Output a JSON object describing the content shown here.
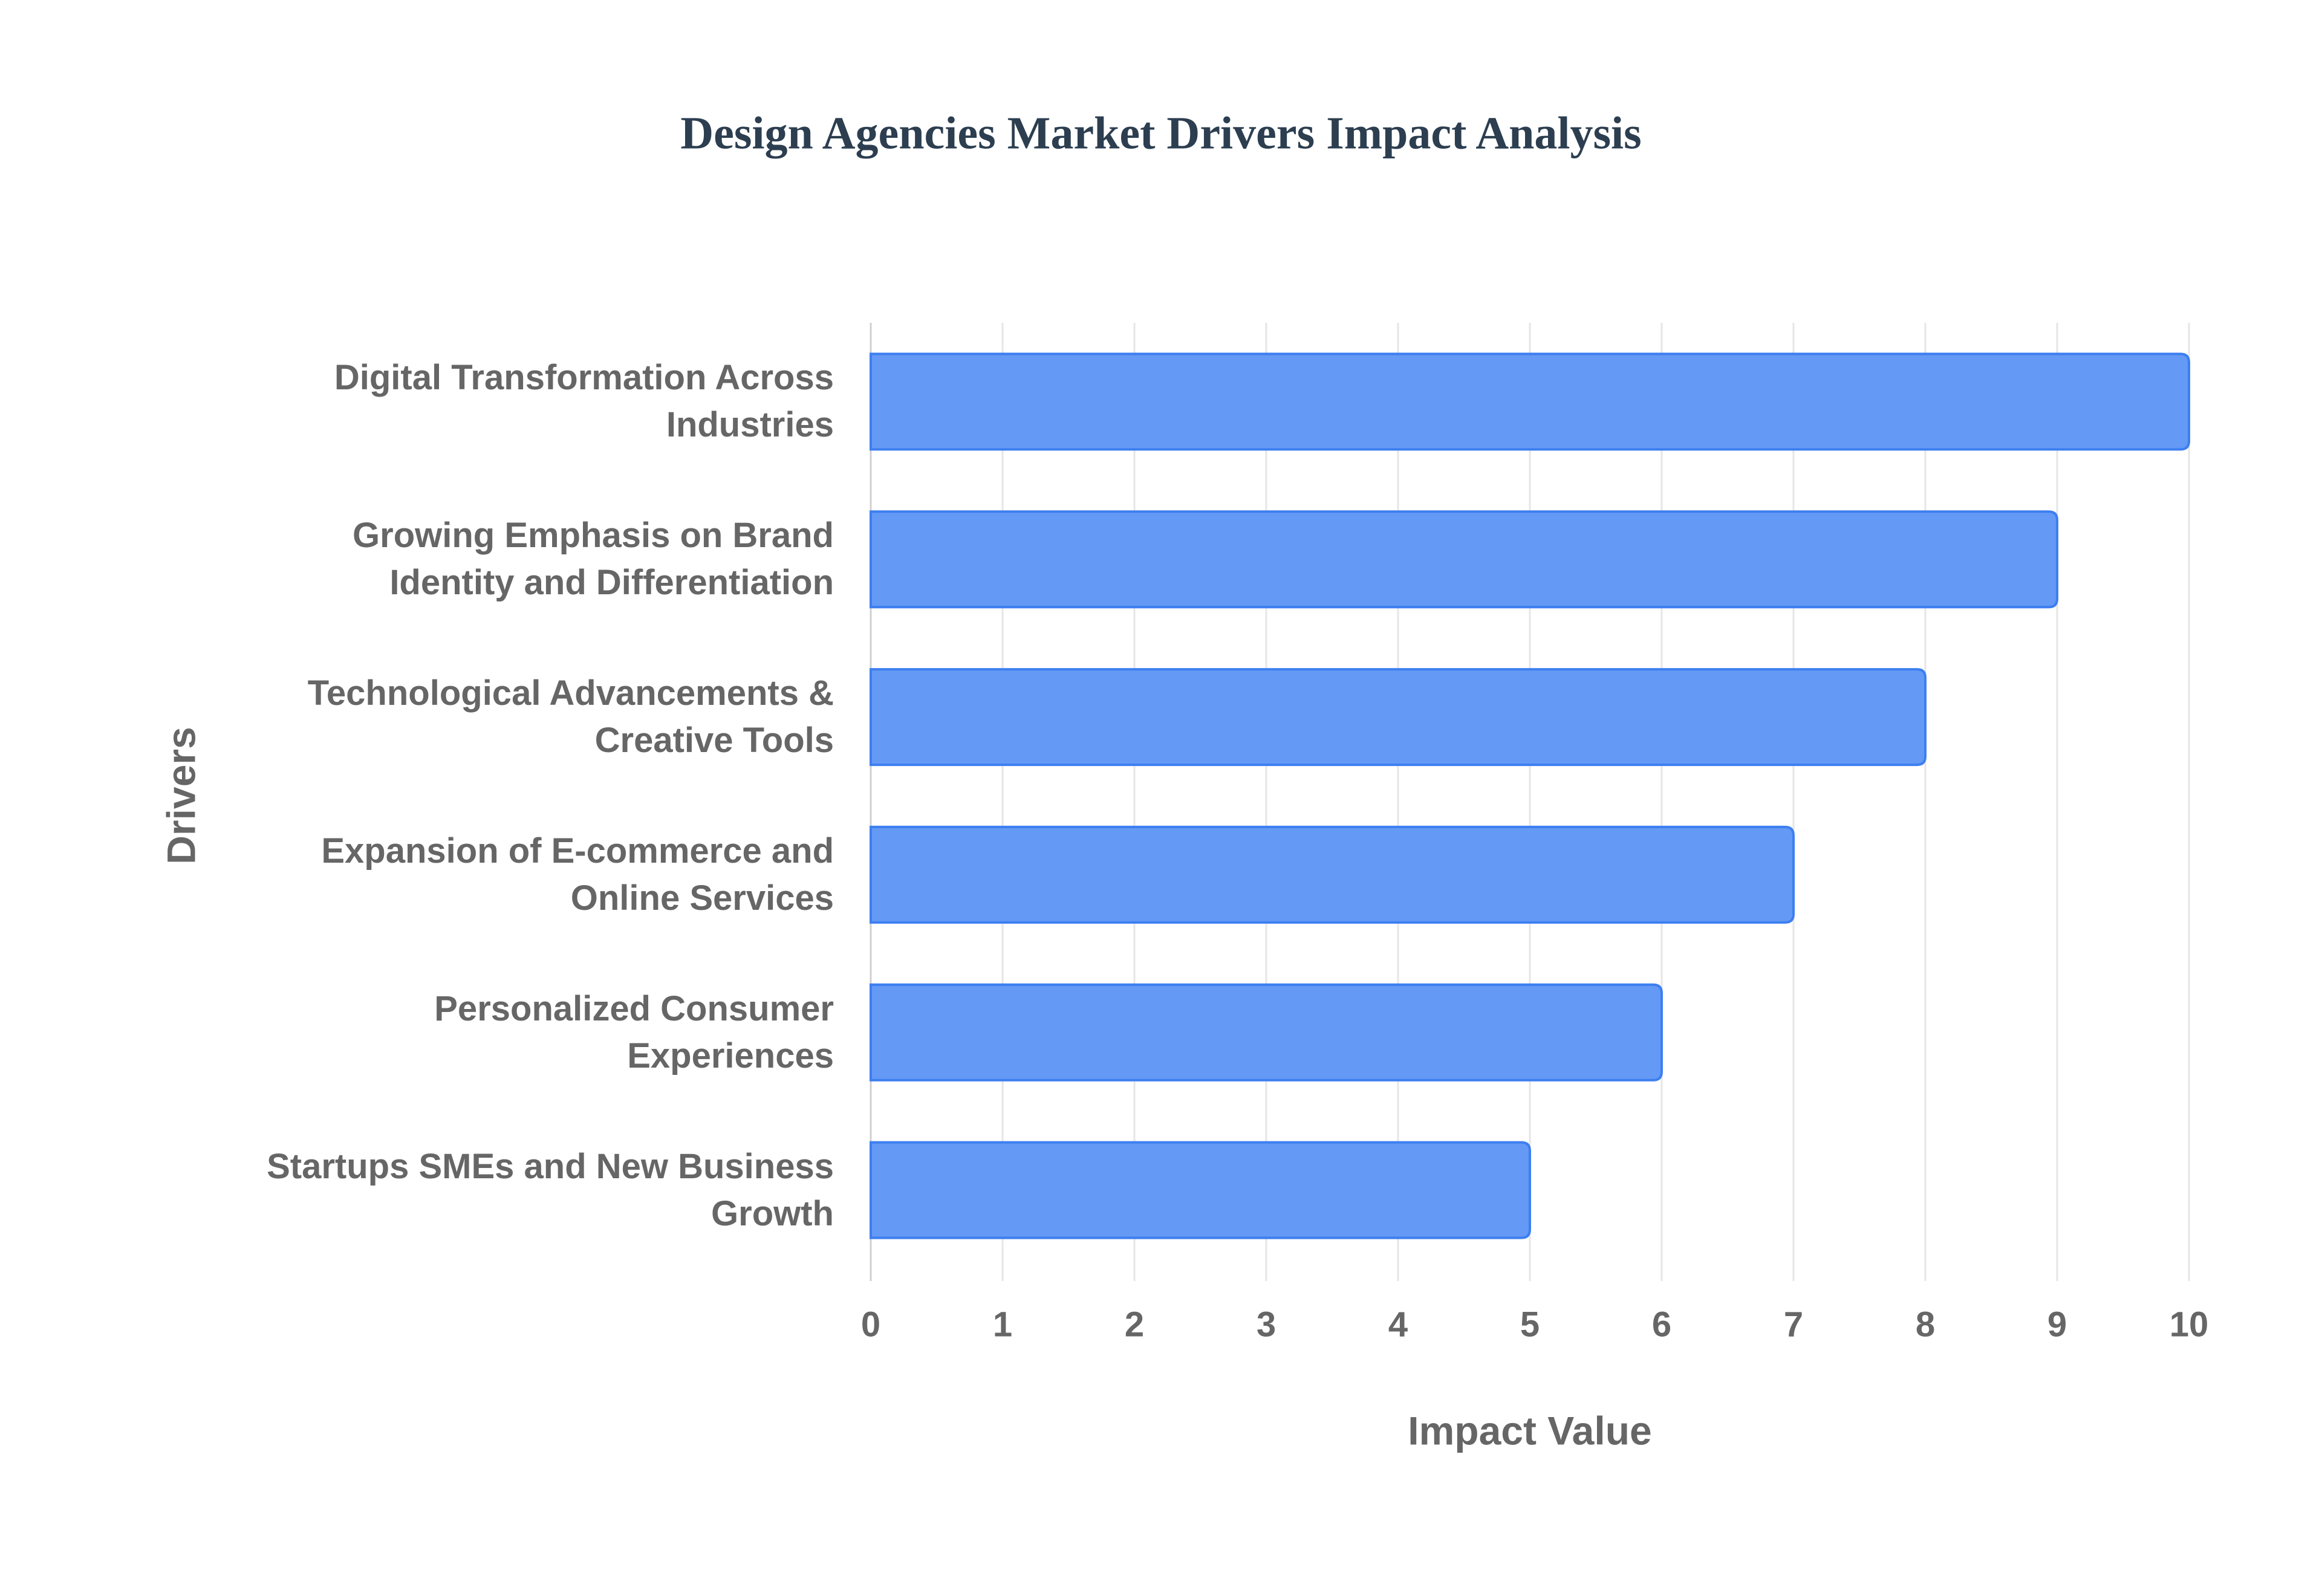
{
  "chart_data": {
    "type": "bar",
    "orientation": "horizontal",
    "title": "Design Agencies Market Drivers Impact Analysis",
    "x_label": "Impact Value",
    "y_label": "Drivers",
    "categories": [
      "Digital Transformation Across Industries",
      "Growing Emphasis on Brand Identity and Differentiation",
      "Technological Advancements & Creative Tools",
      "Expansion of E-commerce and Online Services",
      "Personalized Consumer Experiences",
      "Startups SMEs and New Business Growth"
    ],
    "values": [
      10,
      9,
      8,
      7,
      6,
      5
    ],
    "color": "#6499f5",
    "border_color": "#3d7ff0",
    "xlim": [
      0,
      10
    ],
    "xticks": [
      0,
      1,
      2,
      3,
      4,
      5,
      6,
      7,
      8,
      9,
      10
    ],
    "grid": true
  }
}
